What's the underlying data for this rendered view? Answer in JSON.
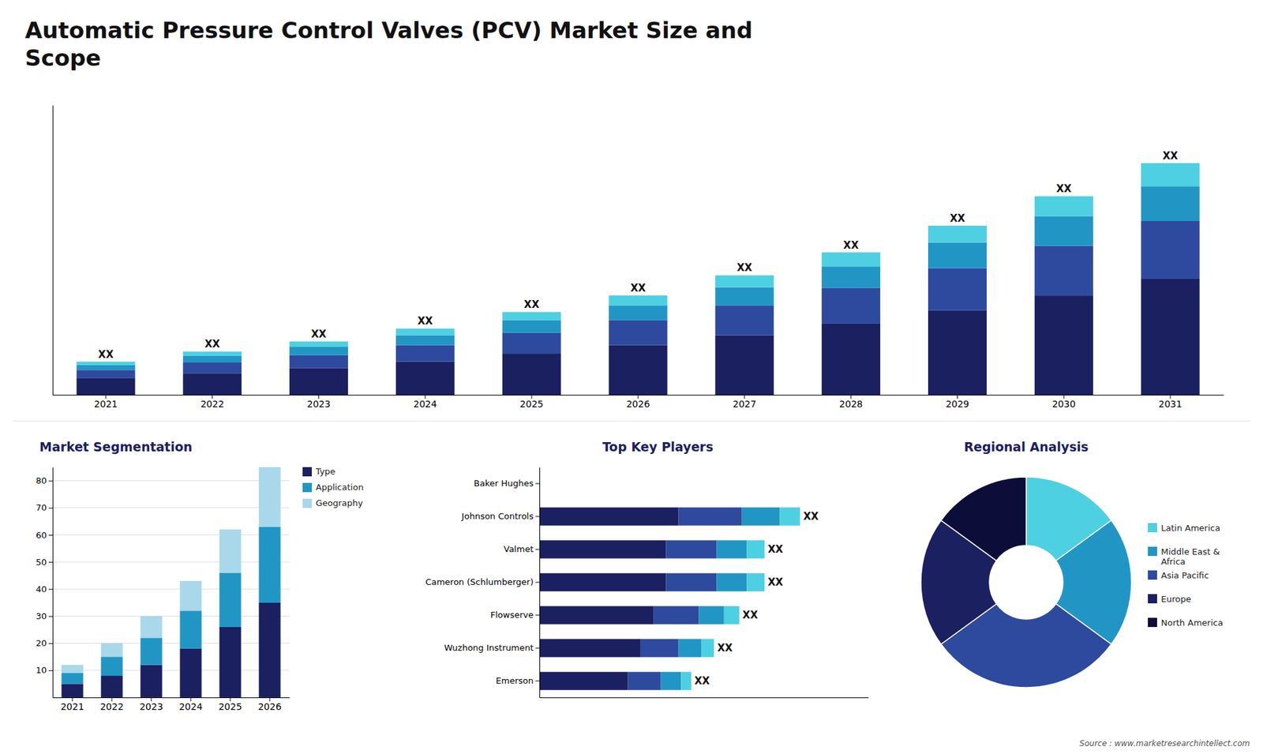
{
  "chart_data": [
    {
      "type": "bar",
      "title": "Automatic Pressure Control Valves (PCV) Market Size and\nScope",
      "stacked": true,
      "categories": [
        "2021",
        "2022",
        "2023",
        "2024",
        "2025",
        "2026",
        "2027",
        "2028",
        "2029",
        "2030",
        "2031"
      ],
      "series": [
        {
          "color": "#1a2060",
          "values": [
            1,
            1.3,
            1.6,
            2.0,
            2.5,
            3.0,
            3.6,
            4.3,
            5.1,
            6.0,
            7.0
          ]
        },
        {
          "color": "#2e4a9e",
          "values": [
            0.5,
            0.65,
            0.8,
            1.0,
            1.25,
            1.5,
            1.8,
            2.15,
            2.55,
            3.0,
            3.5
          ]
        },
        {
          "color": "#2196c4",
          "values": [
            0.3,
            0.4,
            0.5,
            0.6,
            0.75,
            0.9,
            1.1,
            1.3,
            1.55,
            1.8,
            2.1
          ]
        },
        {
          "color": "#4dd0e1",
          "values": [
            0.2,
            0.26,
            0.32,
            0.4,
            0.5,
            0.6,
            0.72,
            0.86,
            1.02,
            1.2,
            1.4
          ]
        }
      ],
      "annotations": [
        "XX",
        "XX",
        "XX",
        "XX",
        "XX",
        "XX",
        "XX",
        "XX",
        "XX",
        "XX",
        "XX"
      ],
      "ylim": [
        0,
        17.5
      ],
      "tick_labels": "x",
      "grid": false
    },
    {
      "type": "bar",
      "title": "Market Segmentation",
      "stacked": true,
      "categories": [
        "2021",
        "2022",
        "2023",
        "2024",
        "2025",
        "2026"
      ],
      "series": [
        {
          "name": "Type",
          "color": "#1a2060",
          "values": [
            5,
            8,
            12,
            18,
            26,
            35
          ]
        },
        {
          "name": "Application",
          "color": "#2196c4",
          "values": [
            4,
            7,
            10,
            14,
            20,
            28
          ]
        },
        {
          "name": "Geography",
          "color": "#a8d8ea",
          "values": [
            3,
            5,
            8,
            11,
            16,
            22
          ]
        }
      ],
      "ylim": [
        0,
        85
      ],
      "yticks": [
        10,
        20,
        30,
        40,
        50,
        60,
        70,
        80
      ],
      "grid": true,
      "legend": "right"
    },
    {
      "type": "bar",
      "title": "Top Key Players",
      "orientation": "horizontal",
      "stacked": true,
      "categories": [
        "Baker Hughes",
        "Johnson Controls",
        "Valmet",
        "Cameron (Schlumberger)",
        "Flowserve",
        "Wuzhong Instrument",
        "Emerson"
      ],
      "series": [
        {
          "color": "#1a2060",
          "values": [
            0,
            5.5,
            5.0,
            5.0,
            4.5,
            4.0,
            3.5
          ]
        },
        {
          "color": "#2e4a9e",
          "values": [
            0,
            2.5,
            2.0,
            2.0,
            1.8,
            1.5,
            1.3
          ]
        },
        {
          "color": "#2196c4",
          "values": [
            0,
            1.5,
            1.2,
            1.2,
            1.0,
            0.9,
            0.8
          ]
        },
        {
          "color": "#4dd0e1",
          "values": [
            0,
            0.8,
            0.7,
            0.7,
            0.6,
            0.5,
            0.4
          ]
        }
      ],
      "annotations": [
        "XX",
        "XX",
        "XX",
        "XX",
        "XX",
        "XX"
      ],
      "xlim": [
        0,
        13
      ],
      "tick_labels": "y",
      "grid": false
    },
    {
      "type": "pie",
      "title": "Regional Analysis",
      "categories": [
        "Latin America",
        "Middle East &\nAfrica",
        "Asia Pacific",
        "Europe",
        "North America"
      ],
      "values": [
        15,
        20,
        30,
        20,
        15
      ],
      "colors": [
        "#4dd0e1",
        "#2196c4",
        "#2e4a9e",
        "#1a2060",
        "#0d0d3a"
      ],
      "legend": "right",
      "annotations": [
        "Source : www.marketresearchintellect.com"
      ]
    }
  ]
}
